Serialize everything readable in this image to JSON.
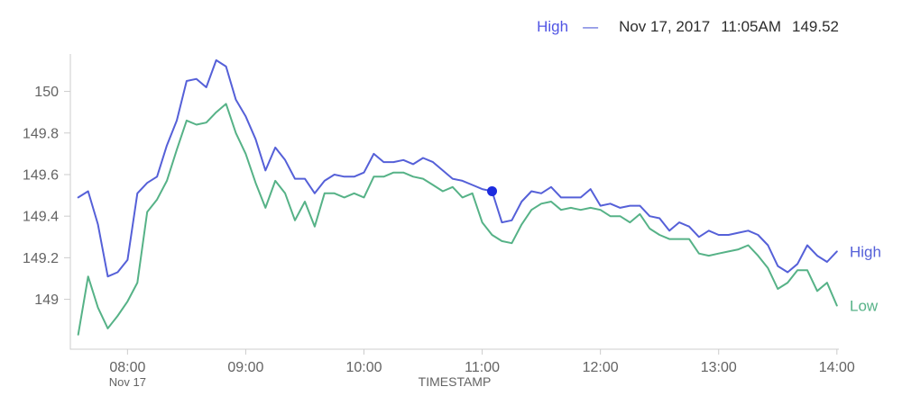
{
  "header": {
    "series_label": "High",
    "dash": "—",
    "date": "Nov 17, 2017",
    "time": "11:05AM",
    "value": "149.52"
  },
  "colors": {
    "high_line": "#5560d8",
    "low_line": "#56b287",
    "legend_text_blue": "#5155e4",
    "marker_dot": "#1c2bdf",
    "axis_line": "#cccccc",
    "tick_text": "#636363",
    "header_text": "#2d2d2d"
  },
  "chart_data": {
    "type": "line",
    "title": "",
    "xlabel": "TIMESTAMP",
    "ylabel": "",
    "x_axis_sub_label": "Nov 17",
    "grid": false,
    "legend_position": "top-right",
    "xlim": [
      "07:31",
      "14:01"
    ],
    "ylim": [
      148.76,
      150.18
    ],
    "x_ticks": [
      "08:00",
      "09:00",
      "10:00",
      "11:00",
      "12:00",
      "13:00",
      "14:00"
    ],
    "y_ticks": [
      {
        "value": 150,
        "label": "150"
      },
      {
        "value": 149.8,
        "label": "149.8"
      },
      {
        "value": 149.6,
        "label": "149.6"
      },
      {
        "value": 149.4,
        "label": "149.4"
      },
      {
        "value": 149.2,
        "label": "149.2"
      },
      {
        "value": 149,
        "label": "149"
      }
    ],
    "x": [
      "07:35",
      "07:40",
      "07:45",
      "07:50",
      "07:55",
      "08:00",
      "08:05",
      "08:10",
      "08:15",
      "08:20",
      "08:25",
      "08:30",
      "08:35",
      "08:40",
      "08:45",
      "08:50",
      "08:55",
      "09:00",
      "09:05",
      "09:10",
      "09:15",
      "09:20",
      "09:25",
      "09:30",
      "09:35",
      "09:40",
      "09:45",
      "09:50",
      "09:55",
      "10:00",
      "10:05",
      "10:10",
      "10:15",
      "10:20",
      "10:25",
      "10:30",
      "10:35",
      "10:40",
      "10:45",
      "10:50",
      "10:55",
      "11:00",
      "11:05",
      "11:10",
      "11:15",
      "11:20",
      "11:25",
      "11:30",
      "11:35",
      "11:40",
      "11:45",
      "11:50",
      "11:55",
      "12:00",
      "12:05",
      "12:10",
      "12:15",
      "12:20",
      "12:25",
      "12:30",
      "12:35",
      "12:40",
      "12:45",
      "12:50",
      "12:55",
      "13:00",
      "13:05",
      "13:10",
      "13:15",
      "13:20",
      "13:25",
      "13:30",
      "13:35",
      "13:40",
      "13:45",
      "13:50",
      "13:55",
      "14:00"
    ],
    "series": [
      {
        "name": "High",
        "end_label": "High",
        "color": "#5560d8",
        "values": [
          149.49,
          149.52,
          149.36,
          149.11,
          149.13,
          149.19,
          149.51,
          149.56,
          149.59,
          149.74,
          149.86,
          150.05,
          150.06,
          150.02,
          150.15,
          150.12,
          149.96,
          149.88,
          149.77,
          149.62,
          149.73,
          149.67,
          149.58,
          149.58,
          149.51,
          149.57,
          149.6,
          149.59,
          149.59,
          149.61,
          149.7,
          149.66,
          149.66,
          149.67,
          149.65,
          149.68,
          149.66,
          149.62,
          149.58,
          149.57,
          149.55,
          149.53,
          149.52,
          149.37,
          149.38,
          149.47,
          149.52,
          149.51,
          149.54,
          149.49,
          149.49,
          149.49,
          149.53,
          149.45,
          149.46,
          149.44,
          149.45,
          149.45,
          149.4,
          149.39,
          149.33,
          149.37,
          149.35,
          149.3,
          149.33,
          149.31,
          149.31,
          149.32,
          149.33,
          149.31,
          149.26,
          149.16,
          149.13,
          149.17,
          149.26,
          149.21,
          149.18,
          149.23
        ]
      },
      {
        "name": "Low",
        "end_label": "Low",
        "color": "#56b287",
        "values": [
          148.83,
          149.11,
          148.96,
          148.86,
          148.92,
          148.99,
          149.08,
          149.42,
          149.48,
          149.57,
          149.72,
          149.86,
          149.84,
          149.85,
          149.9,
          149.94,
          149.8,
          149.7,
          149.56,
          149.44,
          149.57,
          149.51,
          149.38,
          149.47,
          149.35,
          149.51,
          149.51,
          149.49,
          149.51,
          149.49,
          149.59,
          149.59,
          149.61,
          149.61,
          149.59,
          149.58,
          149.55,
          149.52,
          149.54,
          149.49,
          149.51,
          149.37,
          149.31,
          149.28,
          149.27,
          149.36,
          149.43,
          149.46,
          149.47,
          149.43,
          149.44,
          149.43,
          149.44,
          149.43,
          149.4,
          149.4,
          149.37,
          149.41,
          149.34,
          149.31,
          149.29,
          149.29,
          149.29,
          149.22,
          149.21,
          149.22,
          149.23,
          149.24,
          149.26,
          149.21,
          149.15,
          149.05,
          149.08,
          149.14,
          149.14,
          149.04,
          149.08,
          148.97
        ]
      }
    ],
    "marker": {
      "series": "High",
      "time": "11:05",
      "value": 149.52,
      "color": "#1c2bdf"
    }
  }
}
